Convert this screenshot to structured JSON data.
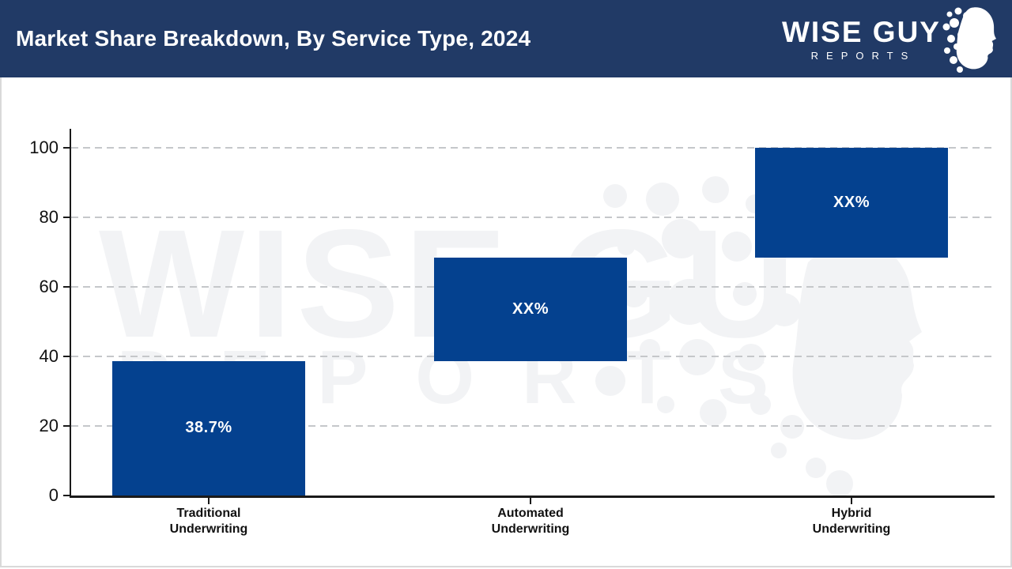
{
  "header": {
    "title": "Market Share Breakdown, By Service Type, 2024",
    "bg_color": "#213a66",
    "logo": {
      "line1": "WISE GUY",
      "line2": "REPORTS"
    }
  },
  "watermark": {
    "line1": "WISE GU",
    "line2": "REPORTS"
  },
  "chart_data": {
    "type": "bar",
    "variant": "floating-waterfall",
    "title": "Market Share Breakdown, By Service Type, 2024",
    "categories": [
      "Traditional Underwriting",
      "Automated Underwriting",
      "Hybrid Underwriting"
    ],
    "bars": [
      {
        "category": "Traditional Underwriting",
        "category_lines": [
          "Traditional",
          "Underwriting"
        ],
        "start": 0,
        "end": 38.7,
        "value_label": "38.7%"
      },
      {
        "category": "Automated Underwriting",
        "category_lines": [
          "Automated",
          "Underwriting"
        ],
        "start": 38.7,
        "end": 68.5,
        "value_label": "XX%"
      },
      {
        "category": "Hybrid Underwriting",
        "category_lines": [
          "Hybrid",
          "Underwriting"
        ],
        "start": 68.5,
        "end": 100,
        "value_label": "XX%"
      }
    ],
    "y_ticks": [
      0,
      20,
      40,
      60,
      80,
      100
    ],
    "ylim": [
      0,
      105.5
    ],
    "xlabel": "",
    "ylabel": "",
    "grid": "dashed-horizontal",
    "legend": "none",
    "bar_color": "#04418f",
    "value_label_color": "#ffffff"
  }
}
